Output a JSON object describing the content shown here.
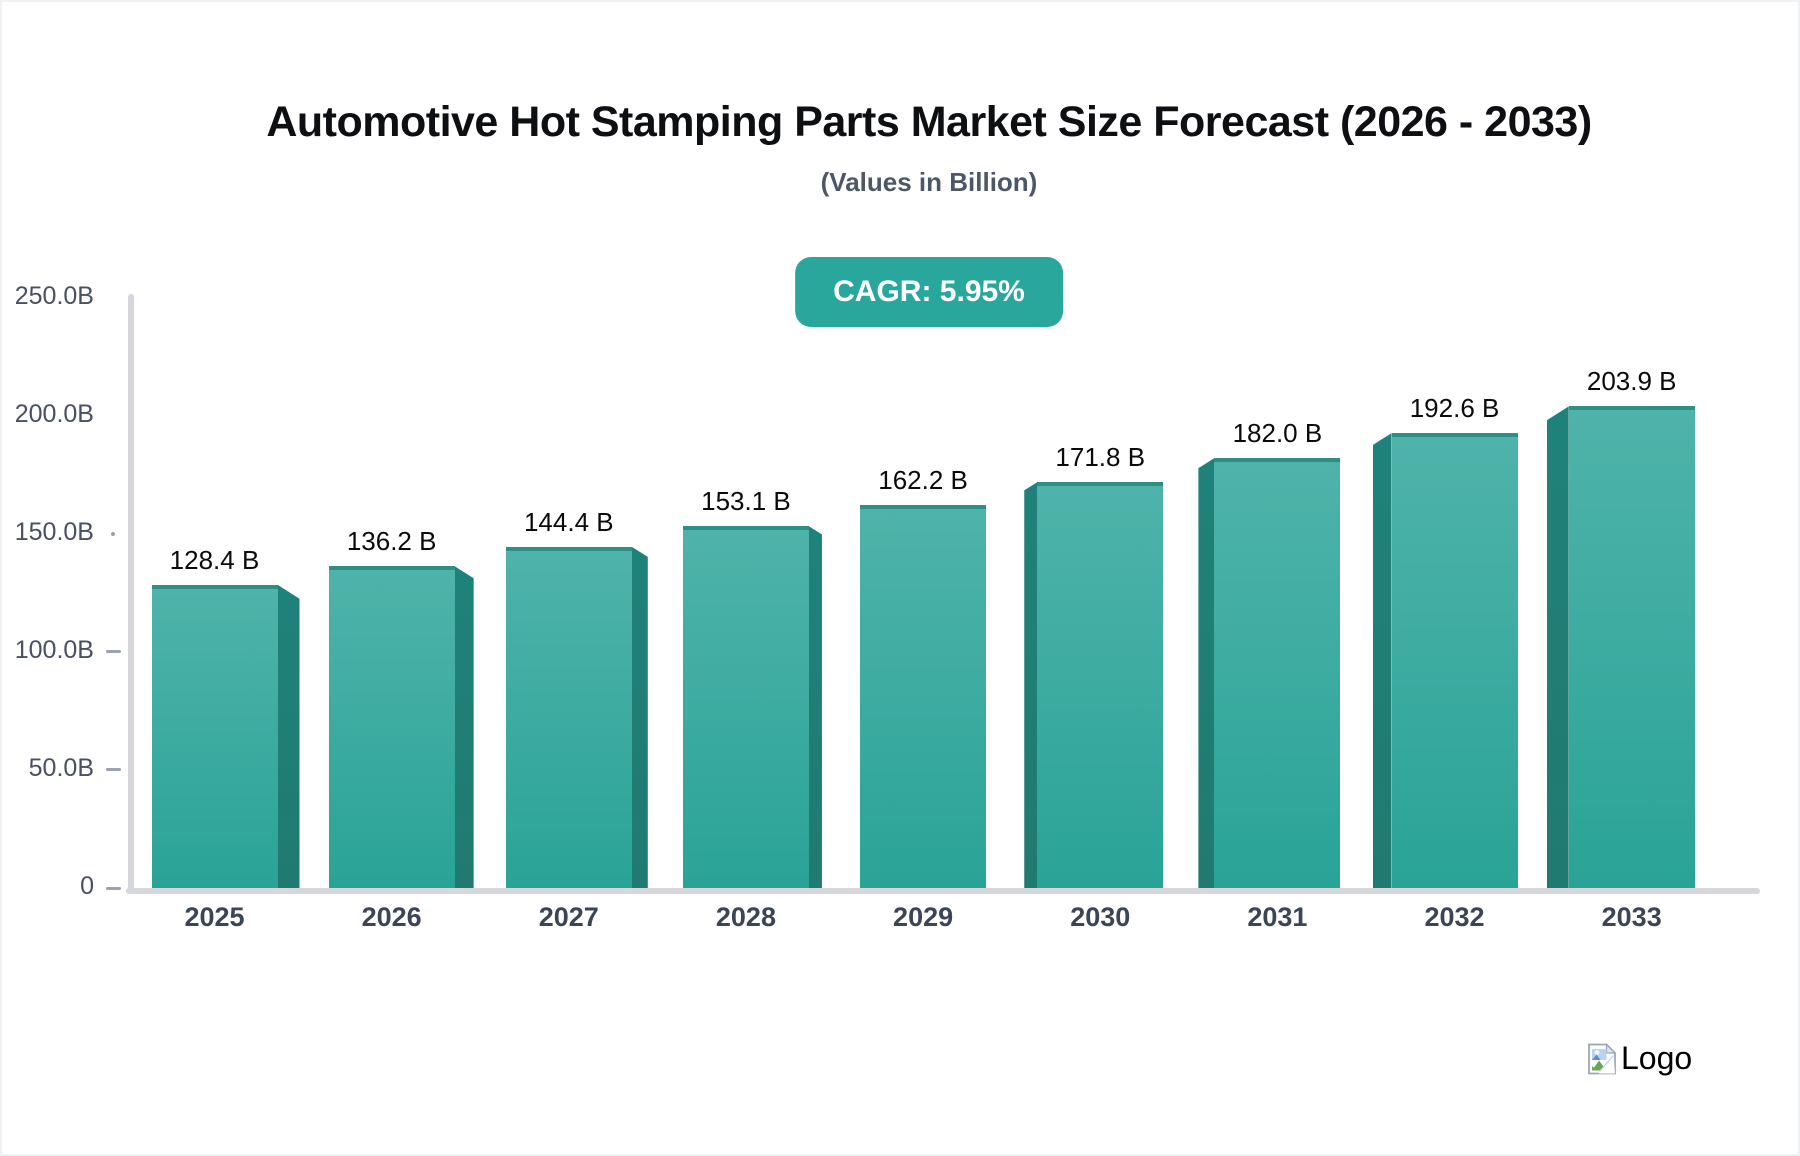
{
  "header": {
    "title": "Automotive Hot Stamping Parts Market Size Forecast (2026 - 2033)",
    "subtitle": "(Values in Billion)",
    "cagr_badge": "CAGR: 5.95%"
  },
  "chart_data": {
    "type": "bar",
    "title": "Automotive Hot Stamping Parts Market Size Forecast (2026 - 2033)",
    "subtitle": "(Values in Billion)",
    "annotation": "CAGR: 5.95%",
    "categories": [
      "2025",
      "2026",
      "2027",
      "2028",
      "2029",
      "2030",
      "2031",
      "2032",
      "2033"
    ],
    "values": [
      128.4,
      136.2,
      144.4,
      153.1,
      162.2,
      171.8,
      182.0,
      192.6,
      203.9
    ],
    "value_labels": [
      "128.4 B",
      "136.2 B",
      "144.4 B",
      "153.1 B",
      "162.2 B",
      "171.8 B",
      "182.0 B",
      "192.6 B",
      "203.9 B"
    ],
    "xlabel": "",
    "ylabel": "",
    "ylim": [
      0,
      250
    ],
    "y_ticks": [
      {
        "label": "250.0B",
        "value": 250,
        "marker": "none"
      },
      {
        "label": "200.0B",
        "value": 200,
        "marker": "none"
      },
      {
        "label": "150.0B",
        "value": 150,
        "marker": "dot"
      },
      {
        "label": "100.0B",
        "value": 100,
        "marker": "dash"
      },
      {
        "label": "50.0B",
        "value": 50,
        "marker": "dash"
      },
      {
        "label": "0",
        "value": 0,
        "marker": "dash"
      }
    ],
    "grid": false,
    "legend": false,
    "bar_style": "3d-perspective"
  },
  "footer": {
    "logo_alt_text": "Logo"
  },
  "colors": {
    "accent": "#2aa79c",
    "bar_face_top": "#4fb3aa",
    "bar_face_bottom": "#2aa397",
    "bar_top_edge": "#2e8f86",
    "bar_side_top": "#1f827a",
    "bar_side_bottom": "#217a70",
    "axis_line": "#d5d7dc",
    "tick_mark": "#9aa2ad",
    "y_label": "#475163",
    "x_label": "#3a4556",
    "value_label": "#0a0a0a",
    "title": "#0d0f13",
    "subtitle": "#4d5866",
    "badge_text": "#ffffff"
  }
}
